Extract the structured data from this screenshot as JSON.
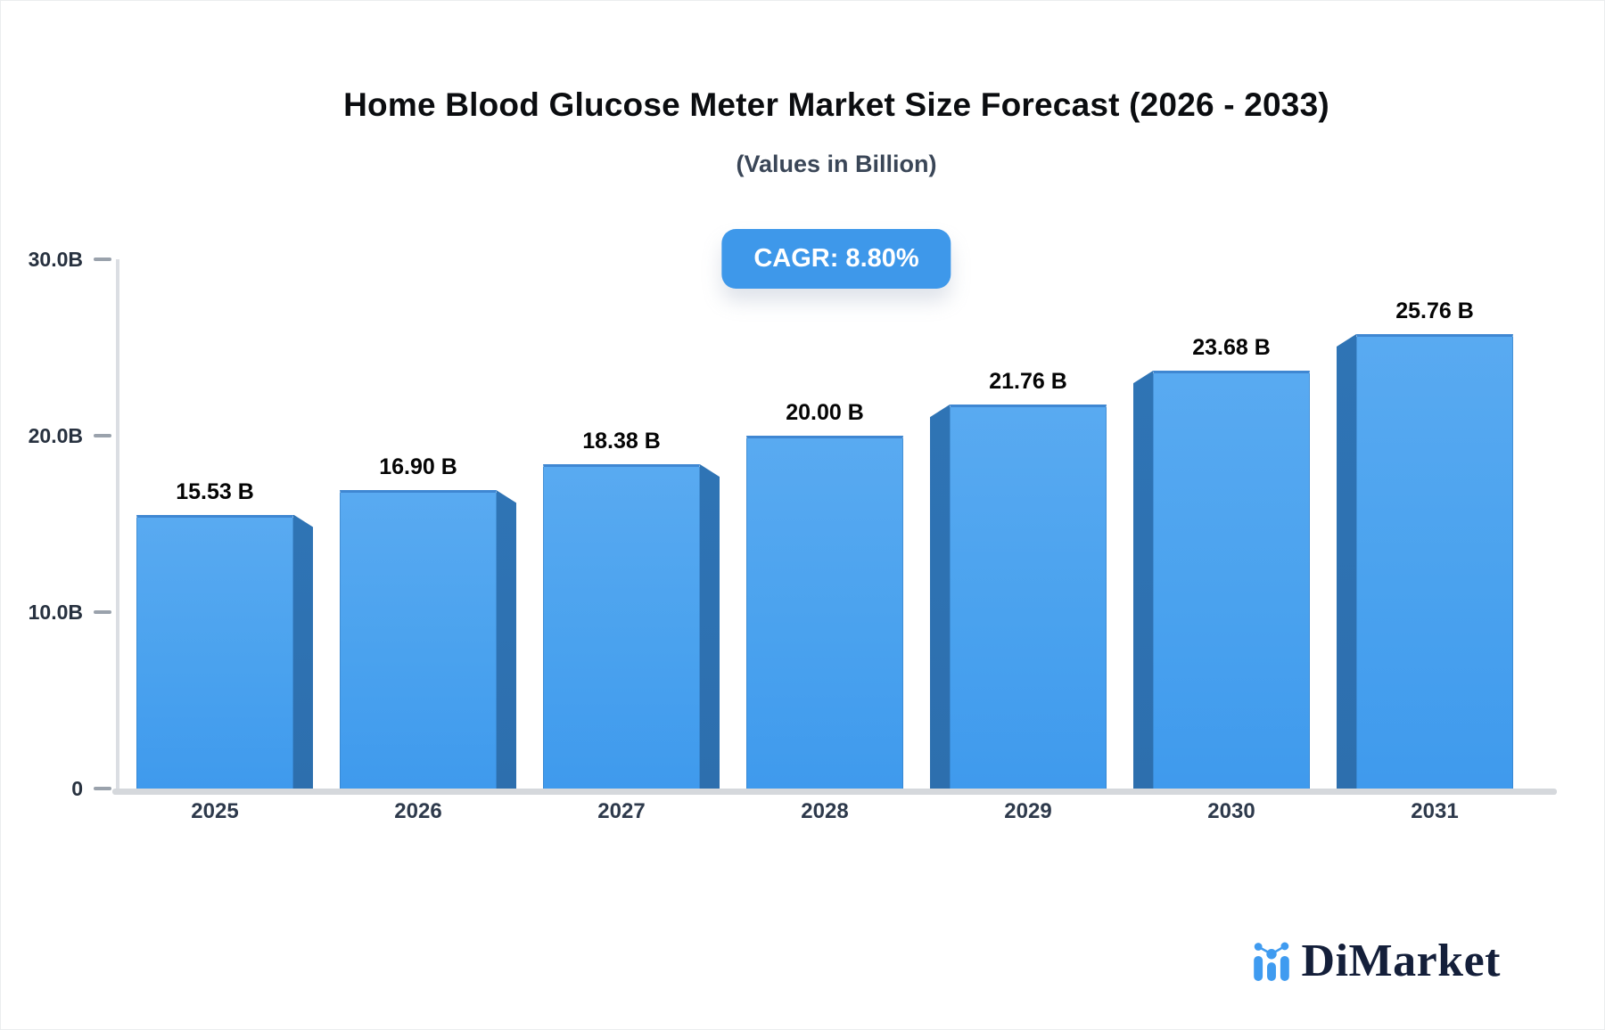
{
  "chart": {
    "title": "Home Blood Glucose Meter Market Size Forecast (2026 - 2033)",
    "subtitle": "(Values in Billion)",
    "cagr_label": "CAGR: 8.80%"
  },
  "chart_data": {
    "type": "bar",
    "title": "Home Blood Glucose Meter Market Size Forecast (2026 - 2033)",
    "subtitle": "(Values in Billion)",
    "unit": "Billion",
    "cagr": "8.80%",
    "categories": [
      "2025",
      "2026",
      "2027",
      "2028",
      "2029",
      "2030",
      "2031"
    ],
    "values": [
      15.53,
      16.9,
      18.38,
      20.0,
      21.76,
      23.68,
      25.76
    ],
    "value_labels": [
      "15.53 B",
      "16.90 B",
      "18.38 B",
      "20.00 B",
      "21.76 B",
      "23.68 B",
      "25.76 B"
    ],
    "y_ticks": [
      {
        "label": "30.0B",
        "value": 30
      },
      {
        "label": "20.0B",
        "value": 20
      },
      {
        "label": "10.0B",
        "value": 10
      },
      {
        "label": "0",
        "value": 0
      }
    ],
    "ylim": [
      0,
      30
    ],
    "grid": false,
    "legend": "none",
    "bar_color_top": "#59AAF1",
    "bar_color_bottom": "#3F9AED",
    "bar_side_color": "#2F74B5",
    "accent_color": "#3E98EA",
    "axis_color": "#D5D8DC",
    "label_color": "#2E3A4C"
  },
  "brand": {
    "name": "DiMarket"
  }
}
